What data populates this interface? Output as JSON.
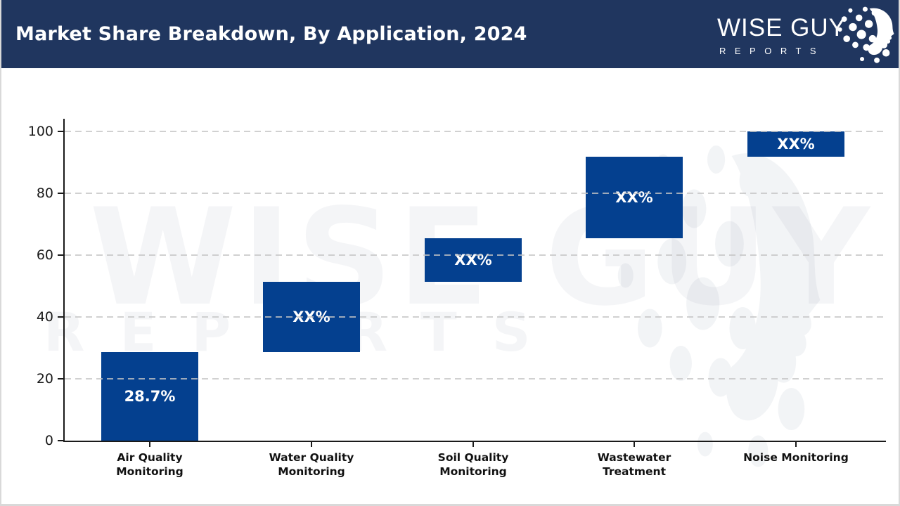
{
  "header": {
    "title": "Market Share Breakdown, By Application, 2024",
    "logo": {
      "line1": "WISE GUY",
      "line2": "REPORTS"
    }
  },
  "watermark": {
    "line1": "WISE GUY",
    "line2": "REPORTS"
  },
  "chart_data": {
    "type": "bar",
    "subtype": "waterfall",
    "title": "Market Share Breakdown, By Application, 2024",
    "categories": [
      "Air Quality\nMonitoring",
      "Water Quality\nMonitoring",
      "Soil Quality\nMonitoring",
      "Wastewater\nTreatment",
      "Noise Monitoring"
    ],
    "segments": [
      {
        "category": "Air Quality Monitoring",
        "start": 0,
        "end": 28.7,
        "label": "28.7%"
      },
      {
        "category": "Water Quality Monitoring",
        "start": 28.7,
        "end": 51.4,
        "label": "XX%"
      },
      {
        "category": "Soil Quality Monitoring",
        "start": 51.4,
        "end": 65.4,
        "label": "XX%"
      },
      {
        "category": "Wastewater Treatment",
        "start": 65.4,
        "end": 91.8,
        "label": "XX%"
      },
      {
        "category": "Noise Monitoring",
        "start": 91.8,
        "end": 100,
        "label": "XX%"
      }
    ],
    "yticks": [
      0,
      20,
      40,
      60,
      80,
      100
    ],
    "ylim": [
      0,
      104
    ],
    "xlabel": "",
    "ylabel": "",
    "legend": "none",
    "grid": "horizontal-dashed",
    "colors": {
      "bar": "#04408f",
      "header_background": "#20365f",
      "axis": "#1a1a1a",
      "gridline": "#c5c5c5",
      "bar_value_text": "#ffffff",
      "tick_text": "#1a1a1a"
    }
  }
}
